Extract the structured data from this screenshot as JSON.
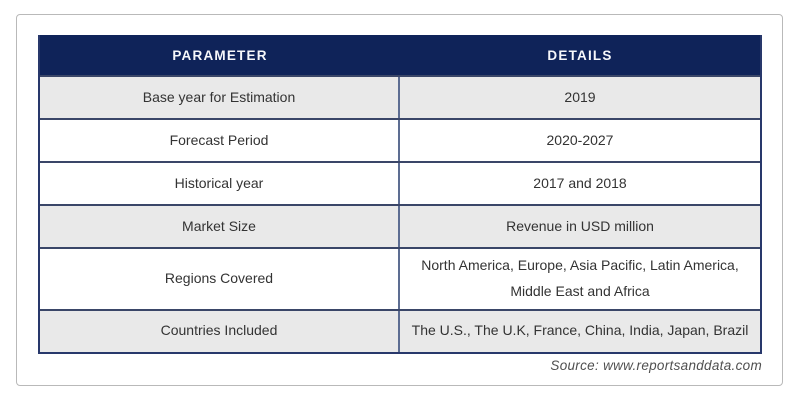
{
  "table": {
    "headers": [
      "PARAMETER",
      "DETAILS"
    ],
    "rows": [
      {
        "parameter": "Base year for Estimation",
        "details": "2019"
      },
      {
        "parameter": "Forecast Period",
        "details": "2020-2027"
      },
      {
        "parameter": "Historical year",
        "details": "2017 and 2018"
      },
      {
        "parameter": "Market Size",
        "details": "Revenue in USD million"
      },
      {
        "parameter": "Regions Covered",
        "details": "North America, Europe, Asia Pacific, Latin America, Middle East and Africa"
      },
      {
        "parameter": "Countries Included",
        "details": "The U.S., The  U.K, France, China, India, Japan, Brazil"
      }
    ]
  },
  "source": "Source: www.reportsanddata.com",
  "colors": {
    "header_background": "#0f2359",
    "header_text": "#f7f8fb",
    "shaded_row_background": "#e9e9e9",
    "table_border": "#28386b",
    "column_divider": "#5d6d92",
    "body_text": "#333333",
    "source_text": "#4f4f4f",
    "outer_frame_border": "#b9b9b9"
  }
}
